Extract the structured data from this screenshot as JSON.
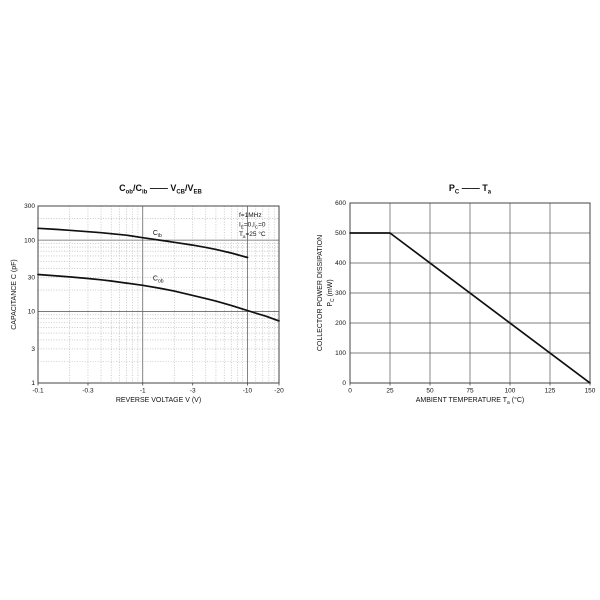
{
  "colors": {
    "background": "#ffffff",
    "text": "#111111",
    "curve": "#111111",
    "frame": "#444444",
    "grid_major": "#666666",
    "grid_minor": "#aaaaaa",
    "grid_linear": "#555555"
  },
  "chart_data": [
    {
      "id": "capacitance-vs-reverse-voltage",
      "type": "line",
      "scale": "log-log",
      "title_segments": [
        {
          "t": "C",
          "sub": "ob"
        },
        {
          "t": "/C",
          "sub": "ib"
        },
        {
          "t": "  ——  "
        },
        {
          "t": "V",
          "sub": "CB"
        },
        {
          "t": "/V",
          "sub": "EB"
        }
      ],
      "conditions": [
        [
          {
            "t": "f=1MHz"
          }
        ],
        [
          {
            "t": "I",
            "sub": "E"
          },
          {
            "t": "=0,I",
            "sub": "C"
          },
          {
            "t": "=0"
          }
        ],
        [
          {
            "t": "T",
            "sub": "a"
          },
          {
            "t": "=25 °C"
          }
        ]
      ],
      "xlabel": "REVERSE  VOLTAGE   V   (V)",
      "ylabel": "CAPACITANCE   C   (pF)",
      "x_range": [
        0.1,
        20
      ],
      "y_range": [
        1,
        300
      ],
      "x_ticks": [
        {
          "label": "-0.1",
          "v": 0.1
        },
        {
          "label": "-0.3",
          "v": 0.3
        },
        {
          "label": "-1",
          "v": 1
        },
        {
          "label": "-3",
          "v": 3
        },
        {
          "label": "-10",
          "v": 10
        },
        {
          "label": "-20",
          "v": 20
        }
      ],
      "y_ticks": [
        {
          "label": "300",
          "v": 300
        },
        {
          "label": "100",
          "v": 100
        },
        {
          "label": "30",
          "v": 30
        },
        {
          "label": "10",
          "v": 10
        },
        {
          "label": "3",
          "v": 3
        },
        {
          "label": "1",
          "v": 1
        }
      ],
      "x_major": [
        1,
        10
      ],
      "y_major": [
        10,
        100
      ],
      "x_minor": [
        0.2,
        0.3,
        0.4,
        0.5,
        0.6,
        0.7,
        0.8,
        0.9,
        2,
        3,
        4,
        5,
        6,
        7,
        8,
        9,
        12,
        14,
        16,
        18
      ],
      "y_minor": [
        2,
        3,
        4,
        5,
        6,
        7,
        8,
        9,
        20,
        30,
        40,
        50,
        60,
        70,
        80,
        90,
        200
      ],
      "series": [
        {
          "name": "Cib",
          "label_segments": [
            {
              "t": "C",
              "sub": "ib"
            }
          ],
          "label_v": 1.25,
          "label_c": 118,
          "points": [
            [
              0.1,
              146
            ],
            [
              0.15,
              141
            ],
            [
              0.2,
              137
            ],
            [
              0.3,
              131
            ],
            [
              0.4,
              127
            ],
            [
              0.5,
              123
            ],
            [
              0.7,
              117
            ],
            [
              1,
              108
            ],
            [
              1.5,
              99
            ],
            [
              2,
              93
            ],
            [
              3,
              85
            ],
            [
              4,
              79
            ],
            [
              5,
              74
            ],
            [
              7,
              66
            ],
            [
              10,
              57
            ]
          ]
        },
        {
          "name": "Cob",
          "label_segments": [
            {
              "t": "C",
              "sub": "ob"
            }
          ],
          "label_v": 1.25,
          "label_c": 27,
          "points": [
            [
              0.1,
              33
            ],
            [
              0.15,
              31.5
            ],
            [
              0.2,
              30.5
            ],
            [
              0.3,
              29
            ],
            [
              0.4,
              27.8
            ],
            [
              0.5,
              26.8
            ],
            [
              0.7,
              25
            ],
            [
              1,
              23.3
            ],
            [
              1.5,
              21
            ],
            [
              2,
              19.3
            ],
            [
              3,
              16.8
            ],
            [
              4,
              15.2
            ],
            [
              5,
              14
            ],
            [
              7,
              12.2
            ],
            [
              10,
              10.3
            ],
            [
              15,
              8.6
            ],
            [
              20,
              7.4
            ]
          ]
        }
      ]
    },
    {
      "id": "collector-power-dissipation-vs-ambient-temperature",
      "type": "line",
      "scale": "linear",
      "title_segments": [
        {
          "t": "P",
          "sub": "C"
        },
        {
          "t": "  ——  "
        },
        {
          "t": "T",
          "sub": "a"
        }
      ],
      "xlabel_segments": [
        {
          "t": "AMBIENT TEMPERATURE T",
          "sub": "a"
        },
        {
          "t": " (°C)"
        }
      ],
      "ylabel_line1": "COLLECTOR POWER DISSIPATION",
      "ylabel_line2_segments": [
        {
          "t": "P",
          "sub": "C"
        },
        {
          "t": " (mW)"
        }
      ],
      "x_range": [
        0,
        150
      ],
      "y_range": [
        0,
        600
      ],
      "x_ticks": [
        {
          "label": "0",
          "v": 0
        },
        {
          "label": "25",
          "v": 25
        },
        {
          "label": "50",
          "v": 50
        },
        {
          "label": "75",
          "v": 75
        },
        {
          "label": "100",
          "v": 100
        },
        {
          "label": "125",
          "v": 125
        },
        {
          "label": "150",
          "v": 150
        }
      ],
      "y_ticks": [
        {
          "label": "0",
          "v": 0
        },
        {
          "label": "100",
          "v": 100
        },
        {
          "label": "200",
          "v": 200
        },
        {
          "label": "300",
          "v": 300
        },
        {
          "label": "400",
          "v": 400
        },
        {
          "label": "500",
          "v": 500
        },
        {
          "label": "600",
          "v": 600
        }
      ],
      "x_grid": [
        25,
        50,
        75,
        100,
        125
      ],
      "y_grid": [
        100,
        200,
        300,
        400,
        500
      ],
      "series": [
        {
          "name": "Pc",
          "points": [
            [
              0,
              500
            ],
            [
              25,
              500
            ],
            [
              150,
              0
            ]
          ]
        }
      ]
    }
  ]
}
